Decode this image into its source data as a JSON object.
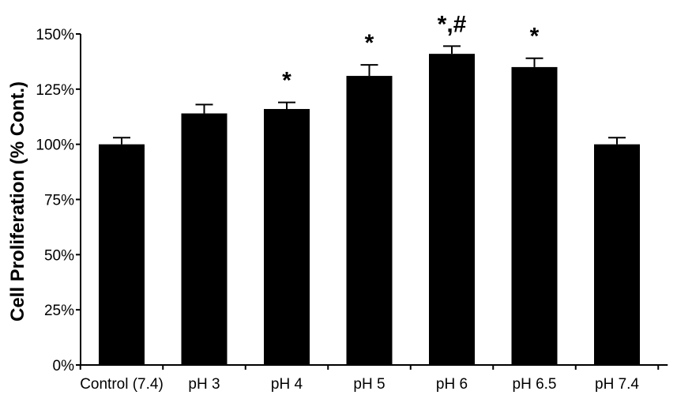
{
  "chart_data": {
    "type": "bar",
    "title": "",
    "xlabel": "",
    "ylabel": "Cell Proliferation (% Cont.)",
    "ylim": [
      0,
      150
    ],
    "yticks": [
      0,
      25,
      50,
      75,
      100,
      125,
      150
    ],
    "ytick_labels": [
      "0%",
      "25%",
      "50%",
      "75%",
      "100%",
      "125%",
      "150%"
    ],
    "categories": [
      "Control (7.4)",
      "pH 3",
      "pH 4",
      "pH 5",
      "pH 6",
      "pH 6.5",
      "pH 7.4"
    ],
    "values": [
      100,
      114,
      116,
      131,
      141,
      135,
      100
    ],
    "errors": [
      3,
      4,
      3,
      5,
      3.5,
      4,
      3
    ],
    "annotations": [
      "",
      "",
      "*",
      "*",
      "*,#",
      "*",
      ""
    ],
    "bar_color": "#000000",
    "grid": false,
    "legend": "none"
  }
}
